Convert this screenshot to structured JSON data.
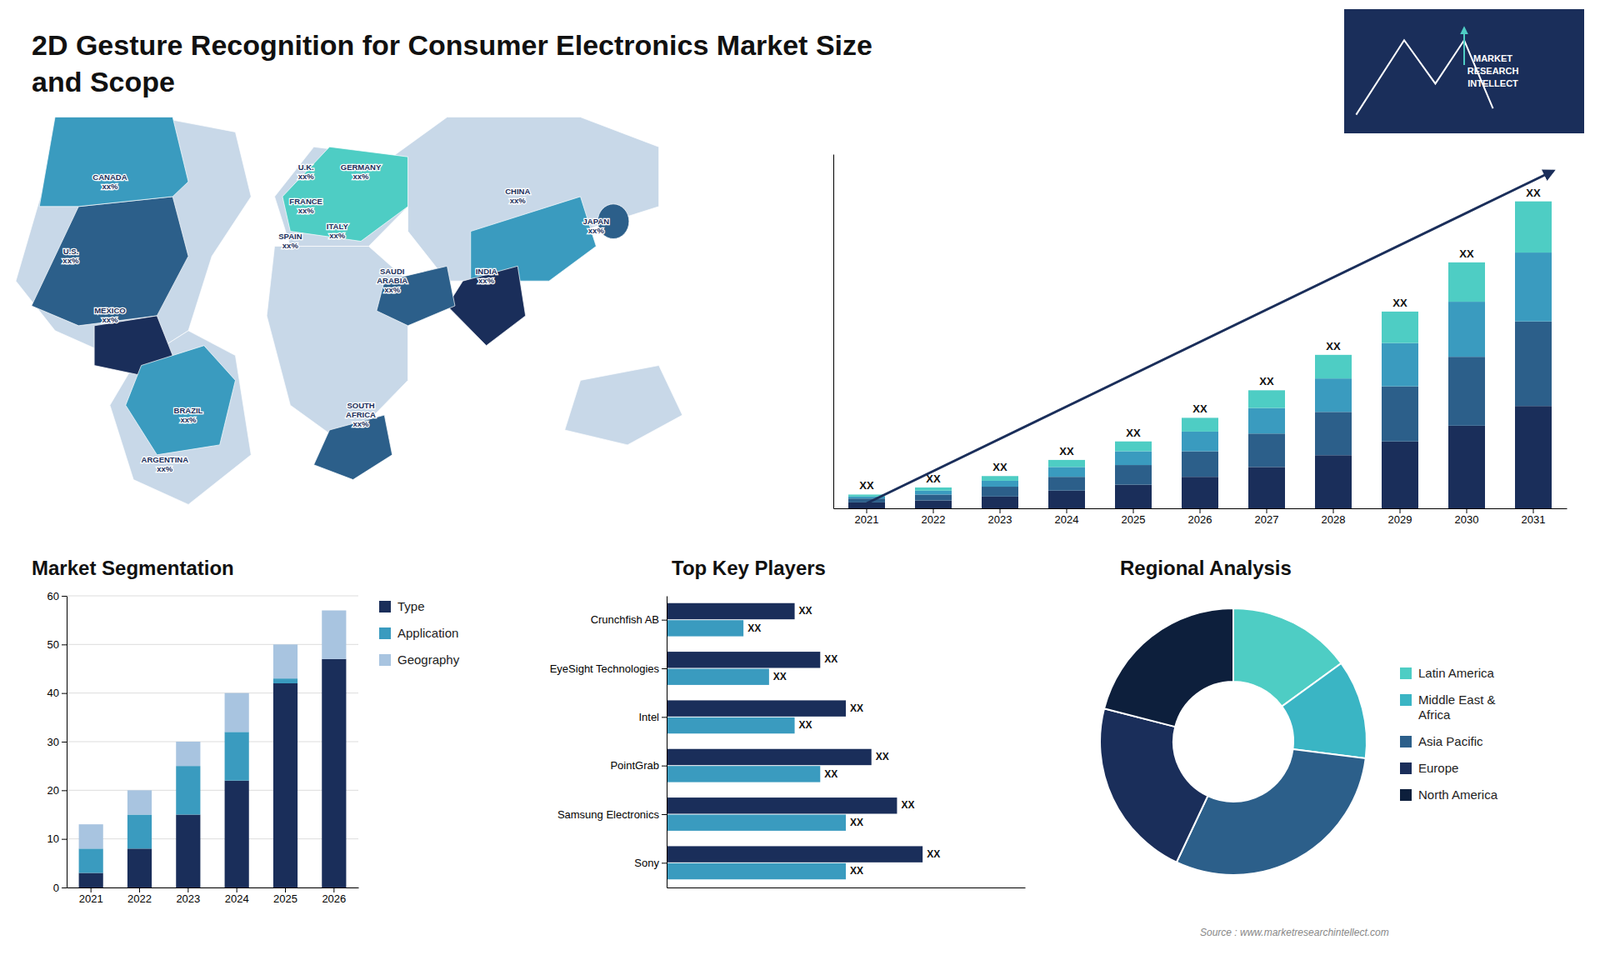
{
  "chart_data": [
    {
      "type": "bar",
      "stacked": true,
      "title": "2D Gesture Recognition for Consumer Electronics Market Size\nand Scope",
      "categories": [
        "2021",
        "2022",
        "2023",
        "2024",
        "2025",
        "2026",
        "2027",
        "2028",
        "2029",
        "2030",
        "2031"
      ],
      "series": [
        {
          "color": "#1a2e5a",
          "values": [
            1.5,
            2.0,
            3.0,
            4.5,
            6.0,
            8.0,
            10.5,
            13.5,
            17.0,
            21.0,
            26.0
          ]
        },
        {
          "color": "#2c5f8a",
          "values": [
            1.0,
            1.5,
            2.5,
            3.5,
            5.0,
            6.5,
            8.5,
            11.0,
            14.0,
            17.5,
            21.5
          ]
        },
        {
          "color": "#3a9bbf",
          "values": [
            0.5,
            1.0,
            1.5,
            2.5,
            3.5,
            5.0,
            6.5,
            8.5,
            11.0,
            14.0,
            17.5
          ]
        },
        {
          "color": "#4ecdc4",
          "values": [
            0.5,
            0.8,
            1.2,
            1.8,
            2.5,
            3.5,
            4.5,
            6.0,
            8.0,
            10.0,
            13.0
          ]
        }
      ],
      "totals": [
        3.5,
        5.3,
        8.2,
        12.3,
        17.0,
        23.0,
        30.0,
        39.0,
        50.0,
        62.5,
        78.0
      ],
      "total_labels": [
        "XX",
        "XX",
        "XX",
        "XX",
        "XX",
        "XX",
        "XX",
        "XX",
        "XX",
        "XX",
        "XX"
      ],
      "ylim": [
        0,
        90
      ],
      "tick_labels": "x",
      "annotations": [
        "Source : www.marketresearchintellect.com",
        "MARKET\nRESEARCH\nINTELLECT"
      ]
    },
    {
      "type": "bar",
      "stacked": true,
      "title": "Market Segmentation",
      "categories": [
        "2021",
        "2022",
        "2023",
        "2024",
        "2025",
        "2026"
      ],
      "series": [
        {
          "name": "Type",
          "color": "#1a2e5a",
          "values": [
            3,
            8,
            15,
            22,
            42,
            47
          ]
        },
        {
          "name": "Application",
          "color": "#3a9bbf",
          "values": [
            5,
            7,
            10,
            10,
            1,
            0
          ]
        },
        {
          "name": "Geography",
          "color": "#a8c4e0",
          "values": [
            5,
            5,
            5,
            8,
            7,
            10
          ]
        }
      ],
      "ylim": [
        0,
        60
      ],
      "yticks": [
        0,
        10,
        20,
        30,
        40,
        50,
        60
      ],
      "grid": true,
      "legend": "right"
    },
    {
      "type": "bar",
      "orientation": "horizontal",
      "title": "Top Key Players",
      "categories": [
        "Sony",
        "Samsung Electronics",
        "PointGrab",
        "Intel",
        "EyeSight Technologies",
        "Crunchfish AB"
      ],
      "series": [
        {
          "color": "#1a2e5a",
          "values": [
            5.0,
            4.5,
            4.0,
            3.5,
            3.0,
            2.5
          ],
          "value_labels": [
            "XX",
            "XX",
            "XX",
            "XX",
            "XX",
            "XX"
          ]
        },
        {
          "color": "#3a9bbf",
          "values": [
            3.5,
            3.5,
            3.0,
            2.5,
            2.0,
            1.5
          ],
          "value_labels": [
            "XX",
            "XX",
            "XX",
            "XX",
            "XX",
            "XX"
          ]
        }
      ],
      "xlim": [
        0,
        7
      ],
      "data_labels": true,
      "tick_labels": "y"
    },
    {
      "type": "donut",
      "title": "Regional Analysis",
      "categories": [
        "Latin America",
        "Middle East &\nAfrica",
        "Asia Pacific",
        "Europe",
        "North America"
      ],
      "values": [
        15,
        12,
        30,
        22,
        21
      ],
      "colors": [
        "#4ecdc4",
        "#3ab5c4",
        "#2c5f8a",
        "#1a2e5a",
        "#0d1f3c"
      ],
      "legend": "right"
    },
    {
      "type": "map",
      "annotations": [
        "CANADA\nxx%",
        "U.S.\nxx%",
        "MEXICO\nxx%",
        "BRAZIL\nxx%",
        "ARGENTINA\nxx%",
        "U.K.\nxx%",
        "FRANCE\nxx%",
        "SPAIN\nxx%",
        "GERMANY\nxx%",
        "ITALY\nxx%",
        "SAUDI\nARABIA\nxx%",
        "SOUTH\nAFRICA\nxx%",
        "CHINA\nxx%",
        "JAPAN\nxx%",
        "INDIA\nxx%"
      ]
    }
  ]
}
